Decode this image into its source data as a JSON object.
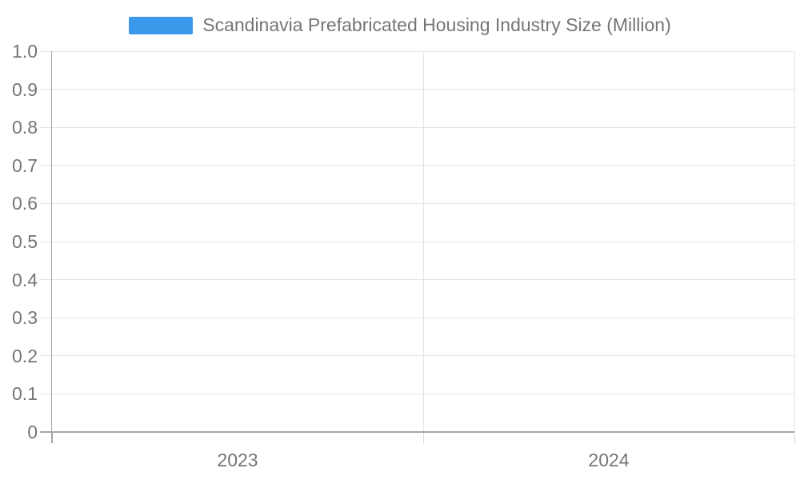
{
  "legend": {
    "label": "Scandinavia Prefabricated Housing Industry Size (Million)",
    "swatch_color": "#3B99EB"
  },
  "chart_data": {
    "type": "bar",
    "title": "Scandinavia Prefabricated Housing Industry Size (Million)",
    "categories": [
      "2023",
      "2024"
    ],
    "series": [
      {
        "name": "Scandinavia Prefabricated Housing Industry Size (Million)",
        "color": "#3B99EB",
        "values": []
      }
    ],
    "xlabel": "",
    "ylabel": "",
    "ylim": [
      0,
      1
    ],
    "ytick_labels": [
      "0",
      "0.1",
      "0.2",
      "0.3",
      "0.4",
      "0.5",
      "0.6",
      "0.7",
      "0.8",
      "0.9",
      "1.0"
    ],
    "grid": true,
    "legend_position": "top"
  },
  "colors": {
    "accent": "#3B99EB",
    "axis_line": "#a6a6a6",
    "gridline": "#e3e3e3",
    "tick_light": "#d9d9d9",
    "text": "#757575"
  }
}
